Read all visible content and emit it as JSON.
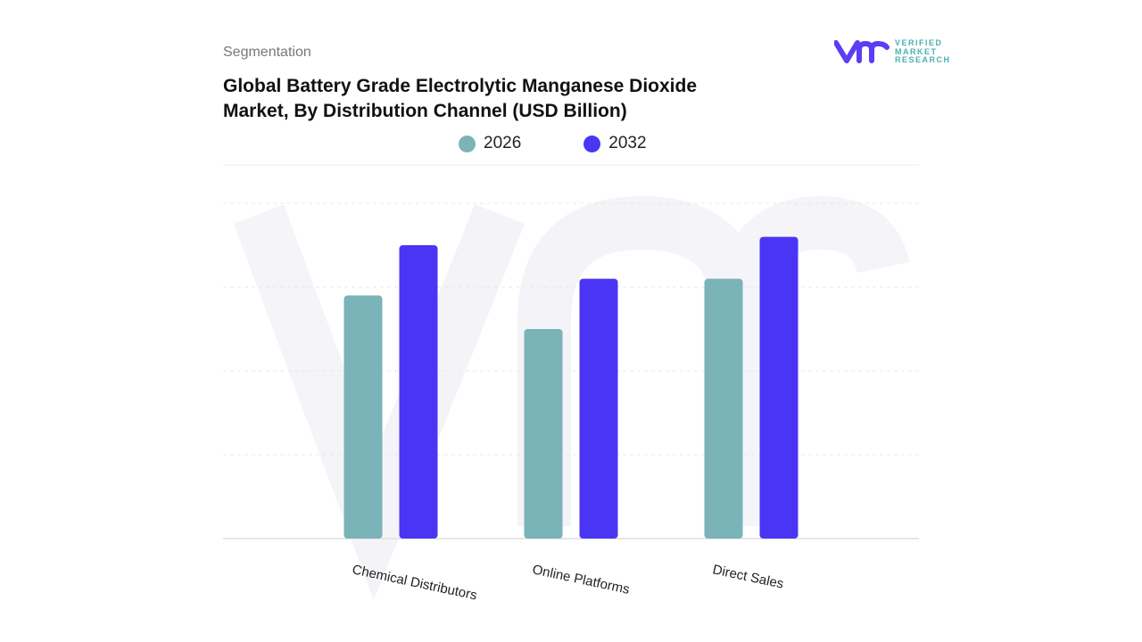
{
  "header": {
    "section_label": "Segmentation",
    "title": "Global Battery Grade Electrolytic Manganese Dioxide Market, By Distribution Channel (USD Billion)"
  },
  "logo": {
    "text_lines": [
      "VERIFIED",
      "MARKET",
      "RESEARCH"
    ],
    "brand_color": "#5a3df5",
    "text_color": "#4db0b0"
  },
  "chart_data": {
    "type": "bar",
    "title": "Global Battery Grade Electrolytic Manganese Dioxide Market, By Distribution Channel (USD Billion)",
    "categories": [
      "Chemical Distributors",
      "Online Platforms",
      "Direct Sales"
    ],
    "series": [
      {
        "name": "2026",
        "color": "#7ab3b8",
        "values": [
          2.9,
          2.5,
          3.1
        ]
      },
      {
        "name": "2032",
        "color": "#4b35f5",
        "values": [
          3.5,
          3.1,
          3.6
        ]
      }
    ],
    "ylim": [
      0,
      4
    ],
    "grid": true,
    "legend": "top-center",
    "xlabel": "",
    "ylabel": ""
  }
}
